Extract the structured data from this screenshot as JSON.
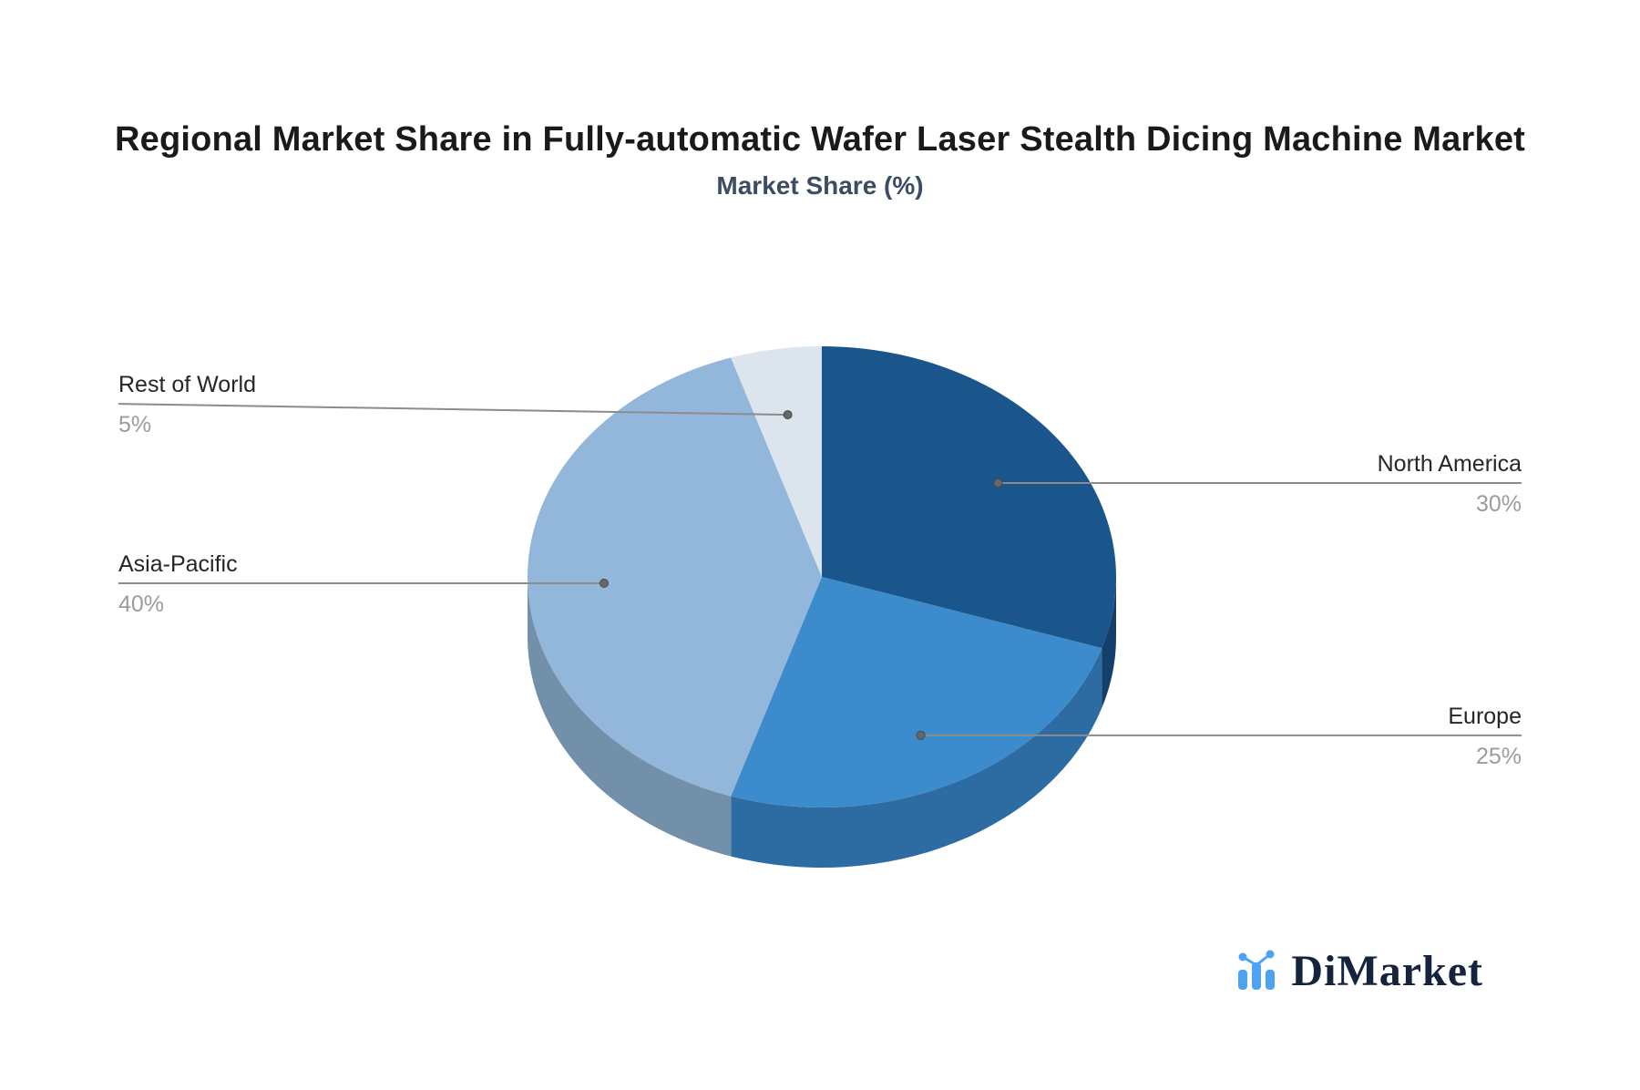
{
  "header": {
    "title": "Regional Market Share in Fully-automatic Wafer Laser Stealth Dicing Machine Market",
    "subtitle": "Market Share (%)"
  },
  "chart_data": {
    "type": "pie",
    "title": "Market Share (%)",
    "unit": "%",
    "start_angle_deg": 0,
    "direction": "clockwise",
    "style": "3d",
    "slices": [
      {
        "label": "North America",
        "value": 30,
        "pct_label": "30%",
        "color": "#1a568c",
        "side_color": "#123f6b"
      },
      {
        "label": "Europe",
        "value": 25,
        "pct_label": "25%",
        "color": "#3c8bcc",
        "side_color": "#2d6ca3"
      },
      {
        "label": "Asia-Pacific",
        "value": 40,
        "pct_label": "40%",
        "color": "#93b6db",
        "side_color": "#7390ab"
      },
      {
        "label": "Rest of World",
        "value": 5,
        "pct_label": "5%",
        "color": "#dce4ed",
        "side_color": "#b9c6d4"
      }
    ],
    "label_text_color": "#262626",
    "percent_text_color": "#9c9c9c",
    "connector_color": "#8c8c8c"
  },
  "branding": {
    "logo_text": "DiMarket",
    "logo_icon": "bar-chart-sparkline-icon",
    "logo_accent_color": "#4da3f2",
    "logo_text_color": "#15233d"
  }
}
